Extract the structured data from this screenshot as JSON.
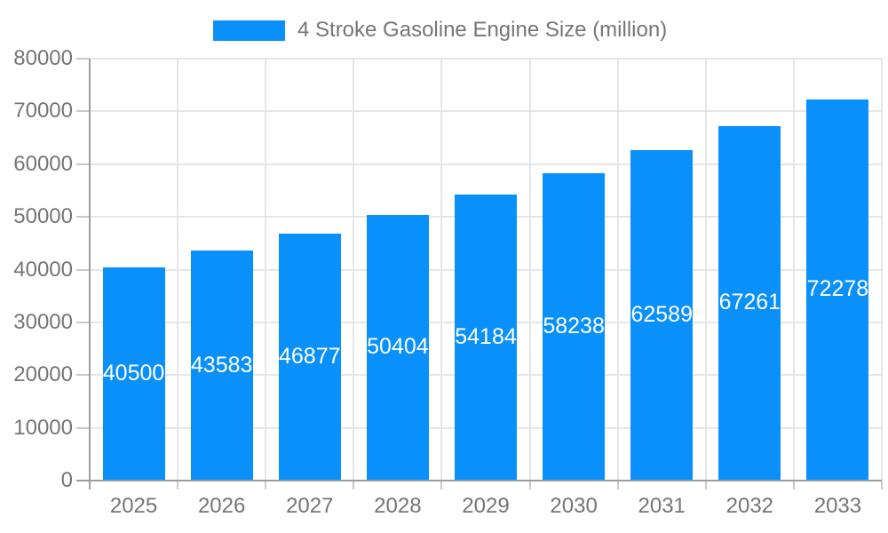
{
  "chart_data": {
    "type": "bar",
    "title": "4 Stroke Gasoline Engine Size (million)",
    "series_name": "4 Stroke Gasoline Engine Size (million)",
    "categories": [
      "2025",
      "2026",
      "2027",
      "2028",
      "2029",
      "2030",
      "2031",
      "2032",
      "2033"
    ],
    "values": [
      40500,
      43583,
      46877,
      50404,
      54184,
      58238,
      62589,
      67261,
      72278
    ],
    "xlabel": "",
    "ylabel": "",
    "ylim": [
      0,
      80000
    ],
    "y_ticks": [
      0,
      10000,
      20000,
      30000,
      40000,
      50000,
      60000,
      70000,
      80000
    ],
    "grid": true,
    "legend_position": "top",
    "bar_labels_visible": true,
    "colors": {
      "bar": "#0a90fa",
      "bar_label": "#ffffff",
      "axis_text": "#757575",
      "grid_line": "#e6e6e6",
      "axis_line": "#9e9e9e",
      "tick": "#c9c9c9"
    }
  }
}
